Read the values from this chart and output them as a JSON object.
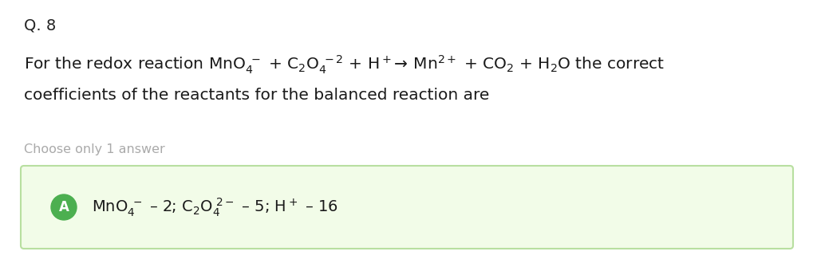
{
  "background_color": "#ffffff",
  "question_number": "Q. 8",
  "question_number_fontsize": 14,
  "question_number_color": "#222222",
  "body_text_color": "#1a1a1a",
  "body_fontsize": 14.5,
  "choose_text": "Choose only 1 answer",
  "choose_fontsize": 11.5,
  "choose_color": "#aaaaaa",
  "option_box_facecolor": "#f2fce8",
  "option_box_edgecolor": "#b8dfa0",
  "circle_color": "#4caf50",
  "circle_label": "A",
  "circle_label_color": "#ffffff",
  "circle_fontsize": 12,
  "answer_fontsize": 14,
  "answer_color": "#1a1a1a"
}
